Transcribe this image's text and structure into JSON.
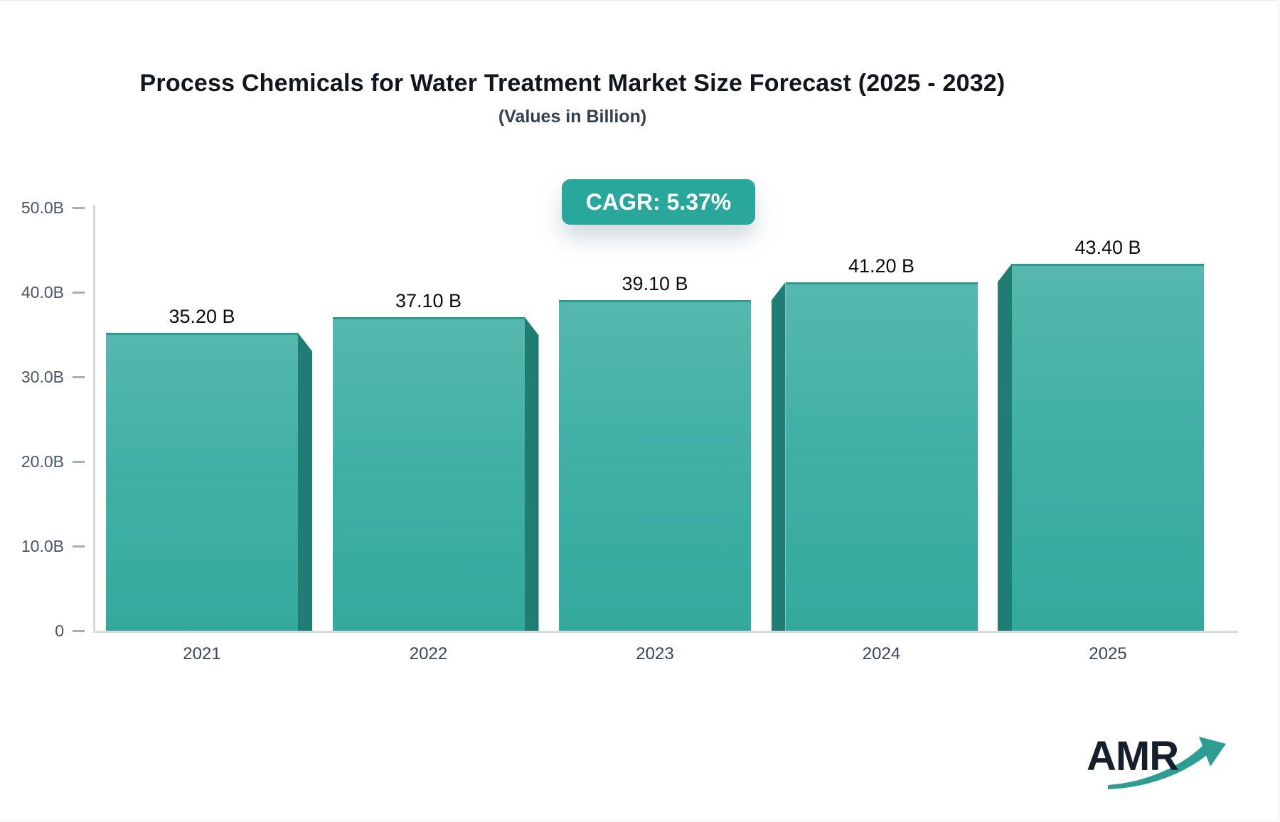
{
  "header": {
    "title": "Process Chemicals for Water Treatment Market Size Forecast (2025 - 2032)",
    "subtitle": "(Values in Billion)"
  },
  "badge": {
    "label": "CAGR: 5.37%",
    "background": "#2aa79b",
    "text_color": "#ffffff"
  },
  "chart_data": {
    "type": "bar",
    "title": "Process Chemicals for Water Treatment Market Size Forecast (2025 - 2032)",
    "subtitle": "(Values in Billion)",
    "categories": [
      "2021",
      "2022",
      "2023",
      "2024",
      "2025"
    ],
    "values": [
      35.2,
      37.1,
      39.1,
      41.2,
      43.4
    ],
    "value_labels": [
      "35.20 B",
      "37.10 B",
      "39.10 B",
      "41.20 B",
      "43.40 B"
    ],
    "ylim": [
      0,
      50
    ],
    "y_ticks": [
      {
        "label": "50.0B",
        "value": 50
      },
      {
        "label": "40.0B",
        "value": 40
      },
      {
        "label": "30.0B",
        "value": 30
      },
      {
        "label": "20.0B",
        "value": 20
      },
      {
        "label": "10.0B",
        "value": 10
      },
      {
        "label": "0",
        "value": 0
      }
    ],
    "grid": false,
    "legend": false,
    "annotation": "CAGR: 5.37%",
    "colors": {
      "bar_top": "#55b8ae",
      "bar_bottom": "#33a99c",
      "bar_edge": "#2b9c90",
      "bar_side_face": "#1f7d73",
      "axis_line": "#d5d9de",
      "tick_text": "#495565"
    }
  },
  "logo": {
    "text": "AMR",
    "arrow_color": "#2e9d92",
    "text_color": "#141f2b"
  }
}
